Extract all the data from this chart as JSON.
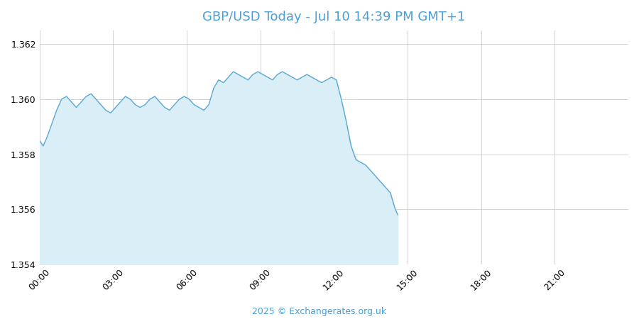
{
  "title": "GBP/USD Today - Jul 10 14:39 PM GMT+1",
  "title_color": "#4d9ed4",
  "footer": "2025 © Exchangerates.org.uk",
  "footer_color": "#4d9ed4",
  "line_color": "#5ba8d4",
  "fill_color": "#daeef7",
  "background_color": "#ffffff",
  "grid_color": "#cccccc",
  "ylim": [
    1.354,
    1.3625
  ],
  "yticks": [
    1.354,
    1.356,
    1.358,
    1.36,
    1.362
  ],
  "xtick_labels": [
    "00:00",
    "03:00",
    "06:00",
    "09:00",
    "12:00",
    "15:00",
    "18:00",
    "21:00"
  ],
  "xtick_positions": [
    0,
    3,
    6,
    9,
    12,
    15,
    18,
    21
  ],
  "xlim": [
    0,
    24
  ],
  "time_hours": [
    0.0,
    0.15,
    0.3,
    0.5,
    0.7,
    0.9,
    1.1,
    1.3,
    1.5,
    1.7,
    1.9,
    2.1,
    2.3,
    2.5,
    2.7,
    2.9,
    3.1,
    3.3,
    3.5,
    3.7,
    3.9,
    4.1,
    4.3,
    4.5,
    4.7,
    4.9,
    5.1,
    5.3,
    5.5,
    5.7,
    5.9,
    6.1,
    6.3,
    6.5,
    6.7,
    6.9,
    7.1,
    7.3,
    7.5,
    7.7,
    7.9,
    8.1,
    8.3,
    8.5,
    8.7,
    8.9,
    9.1,
    9.3,
    9.5,
    9.7,
    9.9,
    10.1,
    10.3,
    10.5,
    10.7,
    10.9,
    11.1,
    11.3,
    11.5,
    11.7,
    11.9,
    12.1,
    12.3,
    12.5,
    12.7,
    12.9,
    13.1,
    13.3,
    13.5,
    13.7,
    13.9,
    14.1,
    14.3,
    14.5,
    14.6
  ],
  "values": [
    1.3585,
    1.3583,
    1.3586,
    1.3591,
    1.3596,
    1.36,
    1.3601,
    1.3599,
    1.3597,
    1.3599,
    1.3601,
    1.3602,
    1.36,
    1.3598,
    1.3596,
    1.3595,
    1.3597,
    1.3599,
    1.3601,
    1.36,
    1.3598,
    1.3597,
    1.3598,
    1.36,
    1.3601,
    1.3599,
    1.3597,
    1.3596,
    1.3598,
    1.36,
    1.3601,
    1.36,
    1.3598,
    1.3597,
    1.3596,
    1.3598,
    1.3604,
    1.3607,
    1.3606,
    1.3608,
    1.361,
    1.3609,
    1.3608,
    1.3607,
    1.3609,
    1.361,
    1.3609,
    1.3608,
    1.3607,
    1.3609,
    1.361,
    1.3609,
    1.3608,
    1.3607,
    1.3608,
    1.3609,
    1.3608,
    1.3607,
    1.3606,
    1.3607,
    1.3608,
    1.3607,
    1.36,
    1.3592,
    1.3583,
    1.3578,
    1.3577,
    1.3576,
    1.3574,
    1.3572,
    1.357,
    1.3568,
    1.3566,
    1.356,
    1.3558
  ]
}
